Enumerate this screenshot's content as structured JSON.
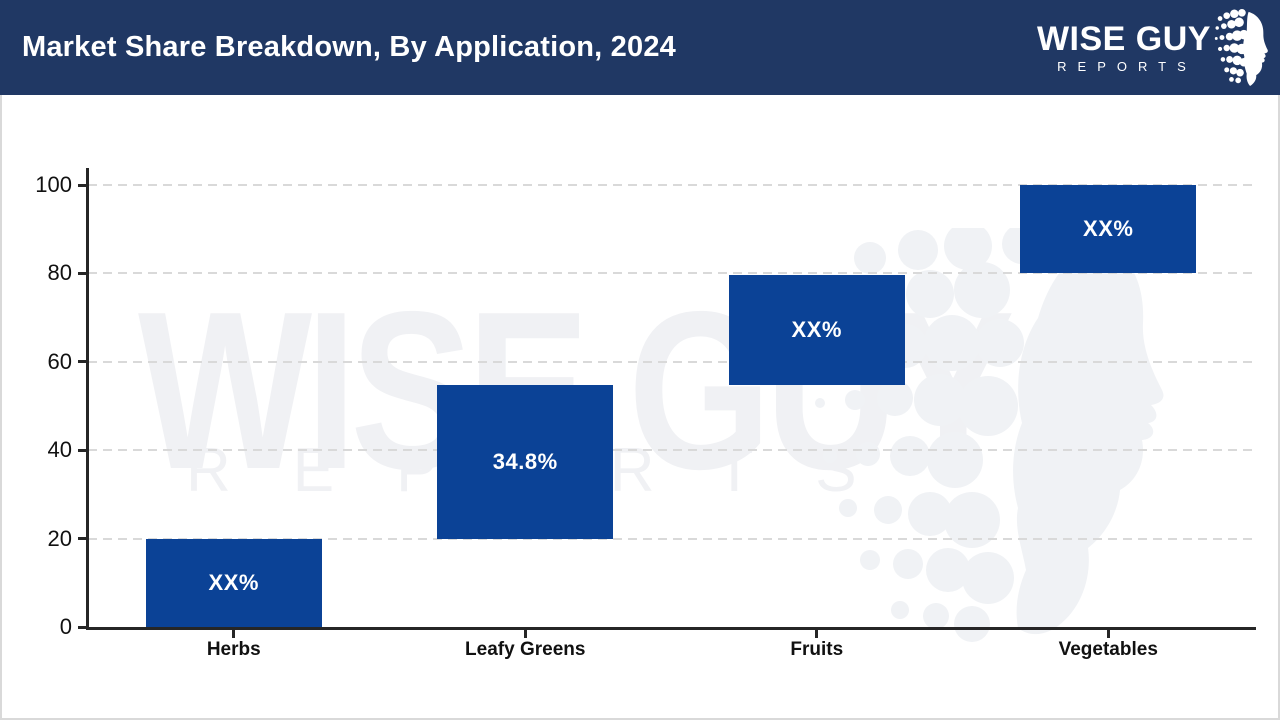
{
  "header": {
    "title": "Market Share Breakdown, By Application, 2024",
    "logo": {
      "wordmark": "WISE GUY",
      "subtext": "REPORTS"
    }
  },
  "watermark": {
    "line1": "WISE GUY",
    "line2": "REPORTS"
  },
  "chart_data": {
    "type": "bar",
    "subtype": "floating-waterfall",
    "title": "Market Share Breakdown, By Application, 2024",
    "categories": [
      "Herbs",
      "Leafy Greens",
      "Fruits",
      "Vegetables"
    ],
    "segments": [
      {
        "category": "Herbs",
        "start": 0,
        "end": 20,
        "label": "XX%"
      },
      {
        "category": "Leafy Greens",
        "start": 20,
        "end": 54.8,
        "label": "34.8%"
      },
      {
        "category": "Fruits",
        "start": 54.8,
        "end": 79.6,
        "label": "XX%"
      },
      {
        "category": "Vegetables",
        "start": 80,
        "end": 100,
        "label": "XX%"
      }
    ],
    "xlabel": "",
    "ylabel": "",
    "ylim": [
      0,
      100
    ],
    "yticks": [
      0,
      20,
      40,
      60,
      80,
      100
    ],
    "grid": "horizontal-dashed",
    "legend": "none",
    "colors": {
      "bar": "#0b4296",
      "bar_label": "#ffffff",
      "header_bg": "#203864",
      "gridline": "#d9d9d9",
      "axis": "#262626",
      "watermark": "#f0f1f4"
    }
  }
}
